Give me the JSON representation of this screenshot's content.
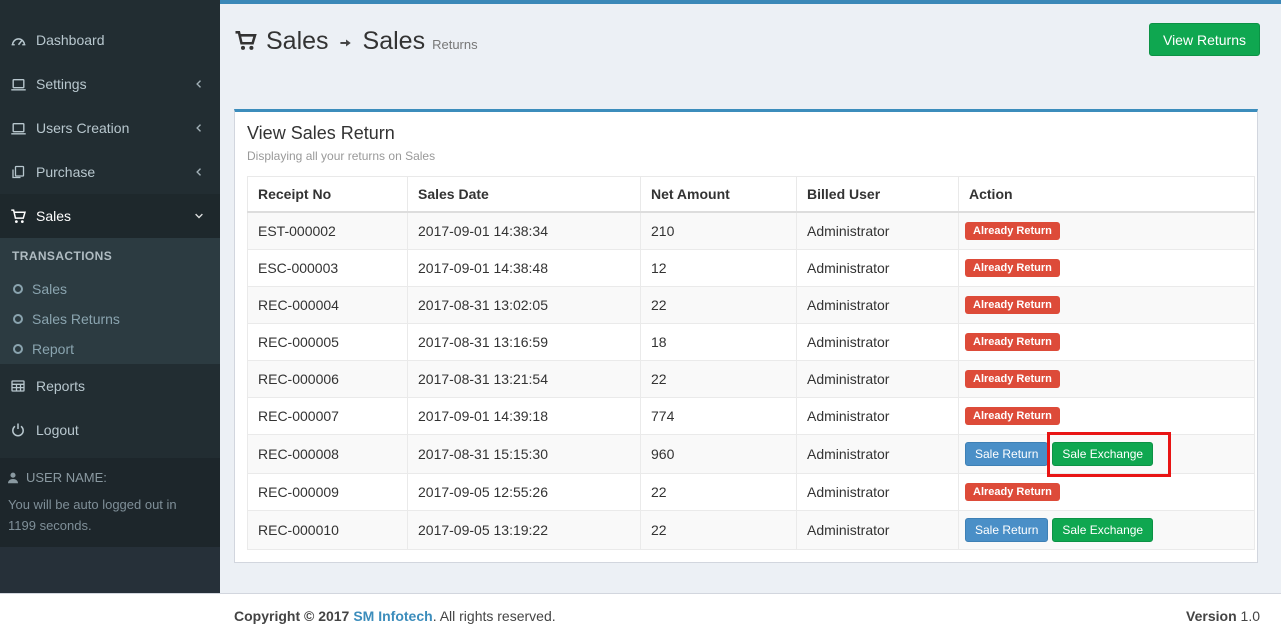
{
  "sidebar": {
    "items": [
      {
        "label": "Dashboard",
        "icon": "dashboard-icon",
        "active": false
      },
      {
        "label": "Settings",
        "icon": "laptop-icon",
        "chevron": "left",
        "active": false
      },
      {
        "label": "Users Creation",
        "icon": "laptop-icon",
        "chevron": "left",
        "active": false
      },
      {
        "label": "Purchase",
        "icon": "copy-icon",
        "chevron": "left",
        "active": false
      },
      {
        "label": "Sales",
        "icon": "cart-icon",
        "chevron": "down",
        "active": true
      }
    ],
    "submenu_header": "TRANSACTIONS",
    "submenu": [
      {
        "label": "Sales",
        "icon": "circle-outline-icon"
      },
      {
        "label": "Sales Returns",
        "icon": "circle-outline-icon"
      },
      {
        "label": "Report",
        "icon": "circle-outline-icon"
      }
    ],
    "items_bottom": [
      {
        "label": "Reports",
        "icon": "table-icon"
      },
      {
        "label": "Logout",
        "icon": "power-icon"
      }
    ],
    "user_panel": {
      "label": "USER NAME:",
      "icon": "user-icon",
      "auto_logout_text": "You will be auto logged out in 1199 seconds."
    }
  },
  "header": {
    "breadcrumb_root": "Sales",
    "breadcrumb_page": "Sales",
    "breadcrumb_sub": "Returns",
    "icon": "cart-icon",
    "view_returns_button": "View Returns"
  },
  "panel": {
    "title": "View Sales Return",
    "subtitle": "Displaying all your returns on Sales"
  },
  "table": {
    "columns": [
      "Receipt No",
      "Sales Date",
      "Net Amount",
      "Billed User",
      "Action"
    ],
    "rows": [
      {
        "receipt_no": "EST-000002",
        "sales_date": "2017-09-01 14:38:34",
        "net_amount": "210",
        "billed_user": "Administrator",
        "actions": [
          {
            "label": "Already Return",
            "style": "badge-danger"
          }
        ]
      },
      {
        "receipt_no": "ESC-000003",
        "sales_date": "2017-09-01 14:38:48",
        "net_amount": "12",
        "billed_user": "Administrator",
        "actions": [
          {
            "label": "Already Return",
            "style": "badge-danger"
          }
        ]
      },
      {
        "receipt_no": "REC-000004",
        "sales_date": "2017-08-31 13:02:05",
        "net_amount": "22",
        "billed_user": "Administrator",
        "actions": [
          {
            "label": "Already Return",
            "style": "badge-danger"
          }
        ]
      },
      {
        "receipt_no": "REC-000005",
        "sales_date": "2017-08-31 13:16:59",
        "net_amount": "18",
        "billed_user": "Administrator",
        "actions": [
          {
            "label": "Already Return",
            "style": "badge-danger"
          }
        ]
      },
      {
        "receipt_no": "REC-000006",
        "sales_date": "2017-08-31 13:21:54",
        "net_amount": "22",
        "billed_user": "Administrator",
        "actions": [
          {
            "label": "Already Return",
            "style": "badge-danger"
          }
        ]
      },
      {
        "receipt_no": "REC-000007",
        "sales_date": "2017-09-01 14:39:18",
        "net_amount": "774",
        "billed_user": "Administrator",
        "actions": [
          {
            "label": "Already Return",
            "style": "badge-danger"
          }
        ]
      },
      {
        "receipt_no": "REC-000008",
        "sales_date": "2017-08-31 15:15:30",
        "net_amount": "960",
        "billed_user": "Administrator",
        "actions": [
          {
            "label": "Sale Return",
            "style": "btn-primary"
          },
          {
            "label": "Sale Exchange",
            "style": "btn-success",
            "highlighted": true
          }
        ]
      },
      {
        "receipt_no": "REC-000009",
        "sales_date": "2017-09-05 12:55:26",
        "net_amount": "22",
        "billed_user": "Administrator",
        "actions": [
          {
            "label": "Already Return",
            "style": "badge-danger"
          }
        ]
      },
      {
        "receipt_no": "REC-000010",
        "sales_date": "2017-09-05 13:19:22",
        "net_amount": "22",
        "billed_user": "Administrator",
        "actions": [
          {
            "label": "Sale Return",
            "style": "btn-primary"
          },
          {
            "label": "Sale Exchange",
            "style": "btn-success"
          }
        ]
      }
    ]
  },
  "footer": {
    "copyright_prefix": "Copyright © 2017",
    "company": "SM Infotech",
    "copyright_suffix": ". All rights reserved.",
    "version_label": "Version",
    "version_value": "1.0"
  },
  "colors": {
    "accent_blue": "#3c8dbc",
    "top_strip_blue": "#3b88b8",
    "success_green": "#0fa750",
    "danger_red": "#dd4b39",
    "primary_button_blue": "#4a8fc7",
    "highlight_red": "#e81414",
    "sidebar_bg": "#222d32",
    "sidebar_active_bg": "#1e282c",
    "submenu_bg": "#2c3b41",
    "content_bg": "#ecf0f5"
  }
}
